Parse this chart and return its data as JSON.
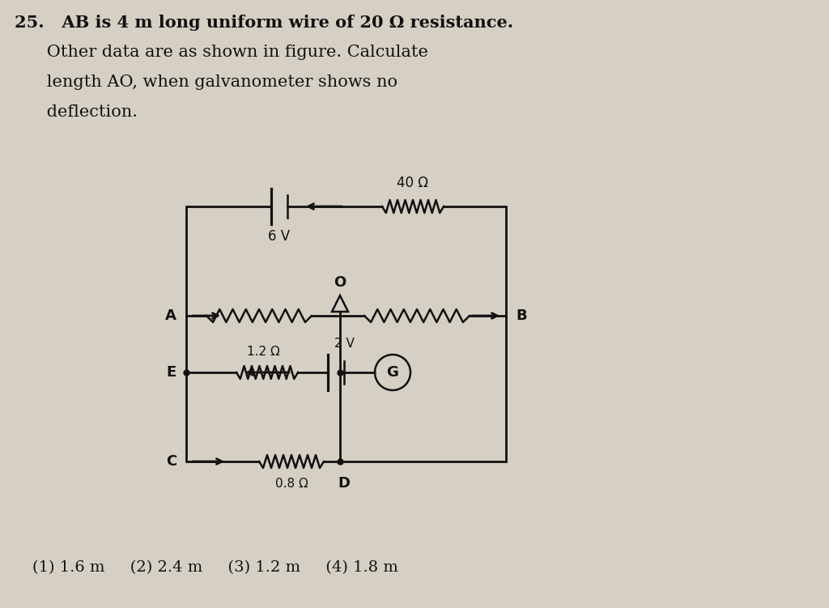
{
  "bg_color": "#d6cfc4",
  "text_color": "#1a1a1a",
  "circuit_color": "#111111",
  "question_line1": "25.   AB is 4 m long uniform wire of 20 Ω resistance.",
  "question_line2": "      Other data are as shown in figure. Calculate",
  "question_line3": "      length AO, when galvanometer shows no",
  "question_line4": "      deflection.",
  "ans": "(1) 1.6 m     (2) 2.4 m     (3) 1.2 m     (4) 1.8 m",
  "label_6V": "6 V",
  "label_40ohm": "40 Ω",
  "label_A": "A",
  "label_B": "B",
  "label_O": "O",
  "label_E": "E",
  "label_C": "C",
  "label_D": "D",
  "label_G": "G",
  "label_12ohm": "1.2 Ω",
  "label_2V": "2 V",
  "label_08ohm": "0.8 Ω",
  "lw_wire": 2.0,
  "lw_component": 1.8
}
